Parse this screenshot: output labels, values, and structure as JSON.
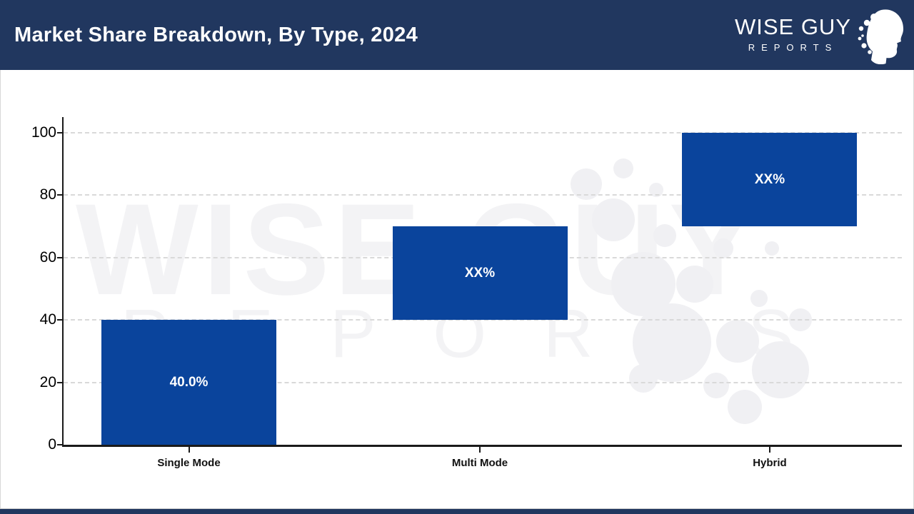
{
  "header": {
    "title": "Market Share Breakdown, By Type, 2024",
    "logo": {
      "line1": "WISE GUY",
      "line2": "REPORTS",
      "head_icon": "dotted-head-profile"
    }
  },
  "watermark": {
    "line1": "WISE GUY",
    "line2": "REPORTS"
  },
  "colors": {
    "header_bg": "#21375f",
    "bar_blue": "#0a449c",
    "grid": "#d9d9d9",
    "watermark": "#f3f3f5",
    "axis": "#1a1a1a"
  },
  "chart_data": {
    "type": "bar",
    "subtype": "floating-range-steps",
    "title": "Market Share Breakdown, By Type, 2024",
    "categories": [
      "Single Mode",
      "Multi Mode",
      "Hybrid"
    ],
    "series": [
      {
        "name": "Market Share %",
        "segments": [
          {
            "category": "Single Mode",
            "start": 0,
            "end": 40,
            "label": "40.0%"
          },
          {
            "category": "Multi Mode",
            "start": 40,
            "end": 70,
            "label": "XX%"
          },
          {
            "category": "Hybrid",
            "start": 70,
            "end": 100,
            "label": "XX%"
          }
        ]
      }
    ],
    "xlabel": "",
    "ylabel": "",
    "ylim": [
      0,
      100
    ],
    "yticks": [
      0,
      20,
      40,
      60,
      80,
      100
    ],
    "grid": "horizontal-dashed",
    "legend": "none",
    "bar_color": "#0a449c",
    "bar_label_color": "#ffffff"
  }
}
